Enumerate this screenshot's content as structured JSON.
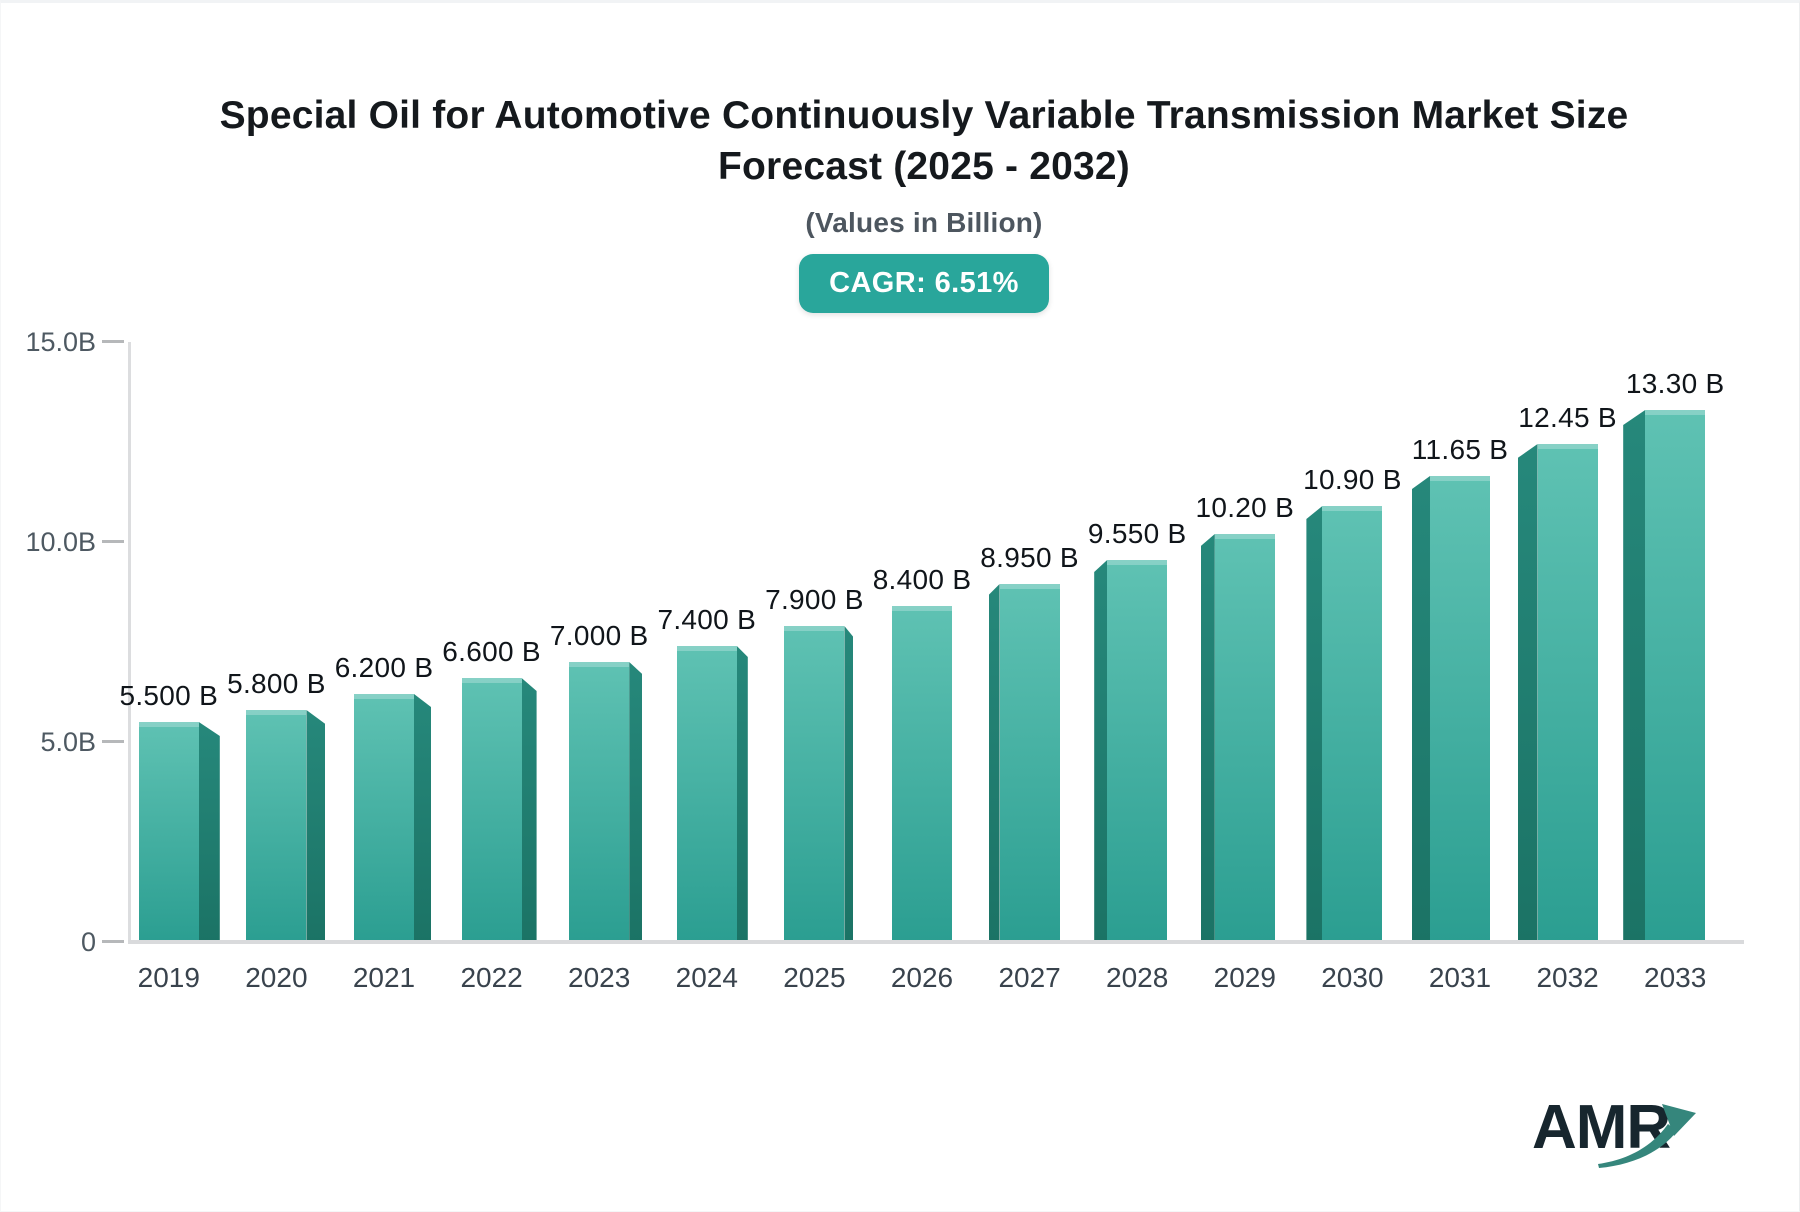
{
  "header": {
    "title_lines": [
      "Special Oil for Automotive Continuously Variable Transmission Market Size",
      "Forecast (2025 - 2032)"
    ],
    "subtitle": "(Values in Billion)",
    "cagr_label": "CAGR: 6.51%",
    "badge_color": "#29a69b"
  },
  "chart_data": {
    "type": "bar",
    "title": "Special Oil for Automotive Continuously Variable Transmission Market Size Forecast (2025 - 2032)",
    "subtitle": "(Values in Billion)",
    "cagr": "6.51%",
    "categories": [
      "2019",
      "2020",
      "2021",
      "2022",
      "2023",
      "2024",
      "2025",
      "2026",
      "2027",
      "2028",
      "2029",
      "2030",
      "2031",
      "2032",
      "2033"
    ],
    "values": [
      5.5,
      5.8,
      6.2,
      6.6,
      7.0,
      7.4,
      7.9,
      8.4,
      8.95,
      9.55,
      10.2,
      10.9,
      11.65,
      12.45,
      13.3
    ],
    "value_labels": [
      "5.500 B",
      "5.800 B",
      "6.200 B",
      "6.600 B",
      "7.000 B",
      "7.400 B",
      "7.900 B",
      "8.400 B",
      "8.950 B",
      "9.550 B",
      "10.20 B",
      "10.90 B",
      "11.65 B",
      "12.45 B",
      "13.30 B"
    ],
    "xlabel": "",
    "ylabel": "",
    "ylim": [
      0,
      15
    ],
    "yticks": [
      {
        "value": 0,
        "label": "0"
      },
      {
        "value": 5,
        "label": "5.0B"
      },
      {
        "value": 10,
        "label": "10.0B"
      },
      {
        "value": 15,
        "label": "15.0B"
      }
    ],
    "grid": false,
    "legend": false,
    "colors": {
      "bar_front_top": "#5fc2b3",
      "bar_front_bottom": "#2b9e91",
      "bar_side_top": "#26887b",
      "bar_side_bottom": "#1b7365",
      "axis_line": "#d9dadc",
      "tick": "#b6b8ba",
      "tick_label": "#4e5962",
      "year_label": "#39434d",
      "value_label": "#10151a"
    }
  },
  "logo": {
    "text": "AMR",
    "arrow_color": "#35867c"
  }
}
